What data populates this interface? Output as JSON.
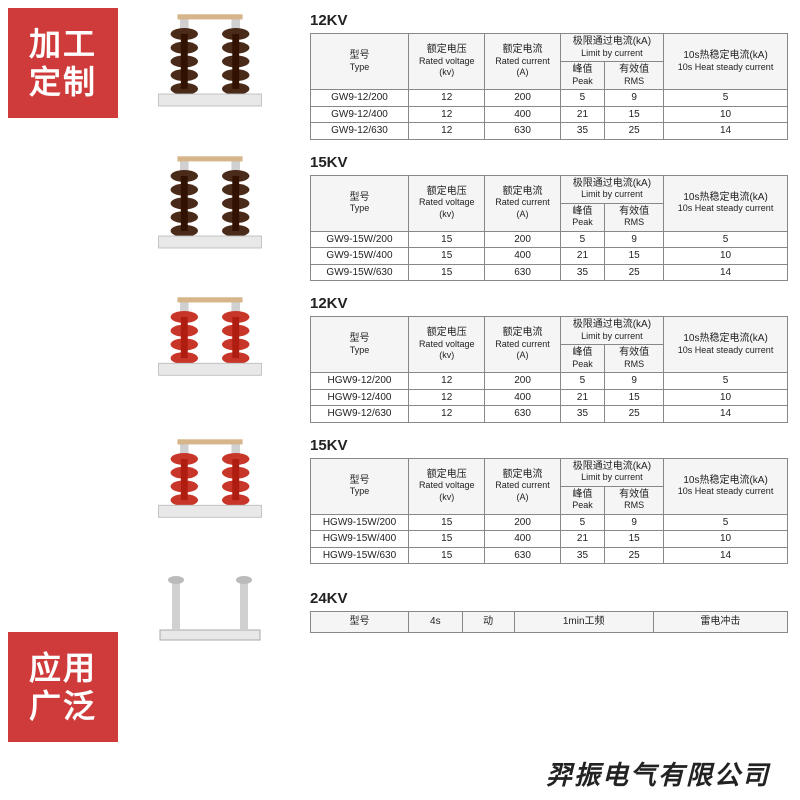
{
  "badge_tl_l1": "加工",
  "badge_tl_l2": "定制",
  "badge_bl_l1": "应用",
  "badge_bl_l2": "广泛",
  "footer": "羿振电气有限公司",
  "header_labels": {
    "type": "型号",
    "type_en": "Type",
    "voltage": "额定电压",
    "voltage_en": "Rated voltage",
    "voltage_unit": "(kv)",
    "current": "额定电流",
    "current_en": "Rated current",
    "current_unit": "(A)",
    "limit": "极限通过电流(kA)",
    "limit_en": "Limit by current",
    "peak": "峰值",
    "peak_en": "Peak",
    "rms": "有效值",
    "rms_en": "RMS",
    "heat": "10s热稳定电流(kA)",
    "heat_en": "10s Heat steady current"
  },
  "header_labels_24": {
    "type": "型号",
    "col2": "4s",
    "col3": "动",
    "col4": "1min工频",
    "col5": "雷电冲击"
  },
  "sections": [
    {
      "title": "12KV",
      "img_variant": "brown",
      "rows": [
        {
          "type": "GW9-12/200",
          "v": "12",
          "a": "200",
          "peak": "5",
          "rms": "9",
          "heat": "5"
        },
        {
          "type": "GW9-12/400",
          "v": "12",
          "a": "400",
          "peak": "21",
          "rms": "15",
          "heat": "10"
        },
        {
          "type": "GW9-12/630",
          "v": "12",
          "a": "630",
          "peak": "35",
          "rms": "25",
          "heat": "14"
        }
      ]
    },
    {
      "title": "15KV",
      "img_variant": "brown",
      "rows": [
        {
          "type": "GW9-15W/200",
          "v": "15",
          "a": "200",
          "peak": "5",
          "rms": "9",
          "heat": "5"
        },
        {
          "type": "GW9-15W/400",
          "v": "15",
          "a": "400",
          "peak": "21",
          "rms": "15",
          "heat": "10"
        },
        {
          "type": "GW9-15W/630",
          "v": "15",
          "a": "630",
          "peak": "35",
          "rms": "25",
          "heat": "14"
        }
      ]
    },
    {
      "title": "12KV",
      "img_variant": "red",
      "rows": [
        {
          "type": "HGW9-12/200",
          "v": "12",
          "a": "200",
          "peak": "5",
          "rms": "9",
          "heat": "5"
        },
        {
          "type": "HGW9-12/400",
          "v": "12",
          "a": "400",
          "peak": "21",
          "rms": "15",
          "heat": "10"
        },
        {
          "type": "HGW9-12/630",
          "v": "12",
          "a": "630",
          "peak": "35",
          "rms": "25",
          "heat": "14"
        }
      ]
    },
    {
      "title": "15KV",
      "img_variant": "red",
      "rows": [
        {
          "type": "HGW9-15W/200",
          "v": "15",
          "a": "200",
          "peak": "5",
          "rms": "9",
          "heat": "5"
        },
        {
          "type": "HGW9-15W/400",
          "v": "15",
          "a": "400",
          "peak": "21",
          "rms": "15",
          "heat": "10"
        },
        {
          "type": "HGW9-15W/630",
          "v": "15",
          "a": "630",
          "peak": "35",
          "rms": "25",
          "heat": "14"
        }
      ]
    }
  ],
  "partial": {
    "title": "24KV"
  },
  "colors": {
    "brown": "#4a2b1a",
    "red": "#c8362a",
    "metal": "#d0d0d0",
    "base": "#e8e8e8",
    "badge": "#cf3b3b"
  }
}
